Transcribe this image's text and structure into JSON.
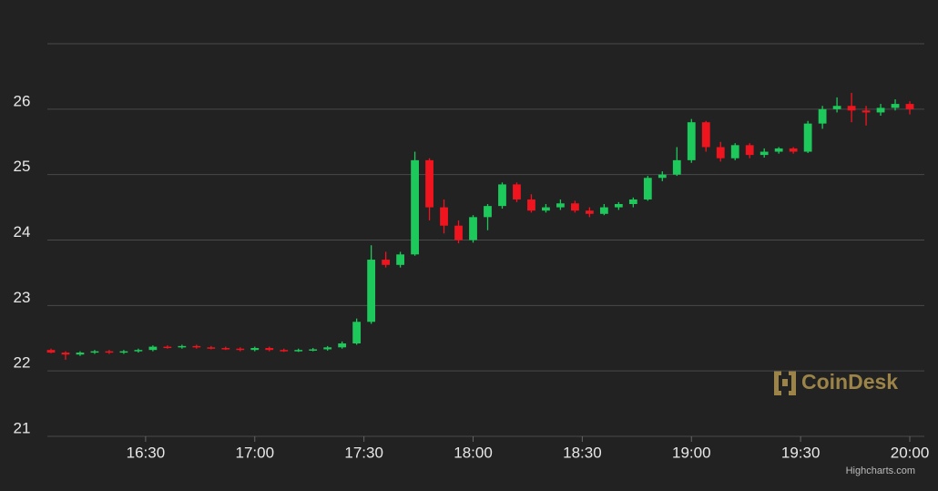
{
  "chart_data": {
    "type": "candlestick",
    "x": [
      "16:04",
      "16:08",
      "16:12",
      "16:16",
      "16:20",
      "16:24",
      "16:28",
      "16:32",
      "16:36",
      "16:40",
      "16:44",
      "16:48",
      "16:52",
      "16:56",
      "17:00",
      "17:04",
      "17:08",
      "17:12",
      "17:16",
      "17:20",
      "17:24",
      "17:28",
      "17:32",
      "17:36",
      "17:40",
      "17:44",
      "17:48",
      "17:52",
      "17:56",
      "18:00",
      "18:04",
      "18:08",
      "18:12",
      "18:16",
      "18:20",
      "18:24",
      "18:28",
      "18:32",
      "18:36",
      "18:40",
      "18:44",
      "18:48",
      "18:52",
      "18:56",
      "19:00",
      "19:04",
      "19:08",
      "19:12",
      "19:16",
      "19:20",
      "19:24",
      "19:28",
      "19:32",
      "19:36",
      "19:40",
      "19:44",
      "19:48",
      "19:52",
      "19:56",
      "20:00"
    ],
    "open": [
      22.32,
      22.28,
      22.25,
      22.28,
      22.3,
      22.28,
      22.3,
      22.32,
      22.37,
      22.36,
      22.38,
      22.36,
      22.35,
      22.34,
      22.32,
      22.35,
      22.32,
      22.31,
      22.32,
      22.33,
      22.36,
      22.42,
      22.75,
      23.7,
      23.62,
      23.78,
      25.22,
      24.5,
      24.22,
      24.0,
      24.35,
      24.52,
      24.85,
      24.62,
      24.45,
      24.5,
      24.56,
      24.45,
      24.4,
      24.5,
      24.55,
      24.62,
      24.95,
      25.0,
      25.22,
      25.8,
      25.42,
      25.25,
      25.45,
      25.3,
      25.35,
      25.4,
      25.35,
      25.78,
      26.0,
      26.05,
      25.98,
      25.95,
      26.02,
      26.08
    ],
    "high": [
      22.34,
      22.3,
      22.3,
      22.32,
      22.32,
      22.32,
      22.34,
      22.39,
      22.39,
      22.4,
      22.4,
      22.38,
      22.37,
      22.36,
      22.37,
      22.37,
      22.34,
      22.34,
      22.35,
      22.38,
      22.45,
      22.8,
      23.92,
      23.82,
      23.82,
      25.35,
      25.25,
      24.62,
      24.3,
      24.38,
      24.55,
      24.88,
      24.88,
      24.7,
      24.55,
      24.62,
      24.6,
      24.5,
      24.55,
      24.58,
      24.65,
      24.98,
      25.05,
      25.42,
      25.85,
      25.82,
      25.5,
      25.48,
      25.48,
      25.4,
      25.42,
      25.42,
      25.82,
      26.05,
      26.18,
      26.25,
      26.05,
      26.08,
      26.15,
      26.12
    ],
    "low": [
      22.27,
      22.17,
      22.23,
      22.26,
      22.26,
      22.26,
      22.28,
      22.3,
      22.34,
      22.34,
      22.34,
      22.33,
      22.32,
      22.3,
      22.3,
      22.3,
      22.29,
      22.29,
      22.3,
      22.31,
      22.34,
      22.4,
      22.72,
      23.58,
      23.58,
      23.76,
      24.3,
      24.1,
      23.95,
      23.96,
      24.15,
      24.48,
      24.58,
      24.42,
      24.42,
      24.46,
      24.42,
      24.35,
      24.38,
      24.46,
      24.5,
      24.6,
      24.9,
      24.98,
      25.18,
      25.35,
      25.2,
      25.22,
      25.25,
      25.26,
      25.32,
      25.32,
      25.33,
      25.7,
      25.95,
      25.8,
      25.75,
      25.9,
      25.98,
      25.92
    ],
    "close": [
      22.28,
      22.25,
      22.28,
      22.3,
      22.28,
      22.3,
      22.32,
      22.37,
      22.36,
      22.38,
      22.36,
      22.35,
      22.34,
      22.32,
      22.35,
      22.32,
      22.31,
      22.32,
      22.33,
      22.36,
      22.42,
      22.75,
      23.7,
      23.62,
      23.78,
      25.22,
      24.5,
      24.22,
      24.0,
      24.35,
      24.52,
      24.85,
      24.62,
      24.45,
      24.5,
      24.56,
      24.45,
      24.4,
      24.5,
      24.55,
      24.62,
      24.95,
      25.0,
      25.22,
      25.8,
      25.42,
      25.25,
      25.45,
      25.3,
      25.35,
      25.4,
      25.35,
      25.78,
      26.0,
      26.05,
      25.98,
      25.95,
      26.02,
      26.08,
      26.0
    ],
    "up_color": "#1ec95c",
    "down_color": "#f0141e",
    "xlim": [
      "16:03",
      "20:04"
    ],
    "xticks": [
      "16:30",
      "17:00",
      "17:30",
      "18:00",
      "18:30",
      "19:00",
      "19:30",
      "20:00"
    ],
    "ylim": [
      21,
      27
    ],
    "yticks": [
      21,
      22,
      23,
      24,
      25,
      26
    ],
    "grid": true,
    "watermark": "CoinDesk",
    "credits": "Highcharts.com"
  }
}
